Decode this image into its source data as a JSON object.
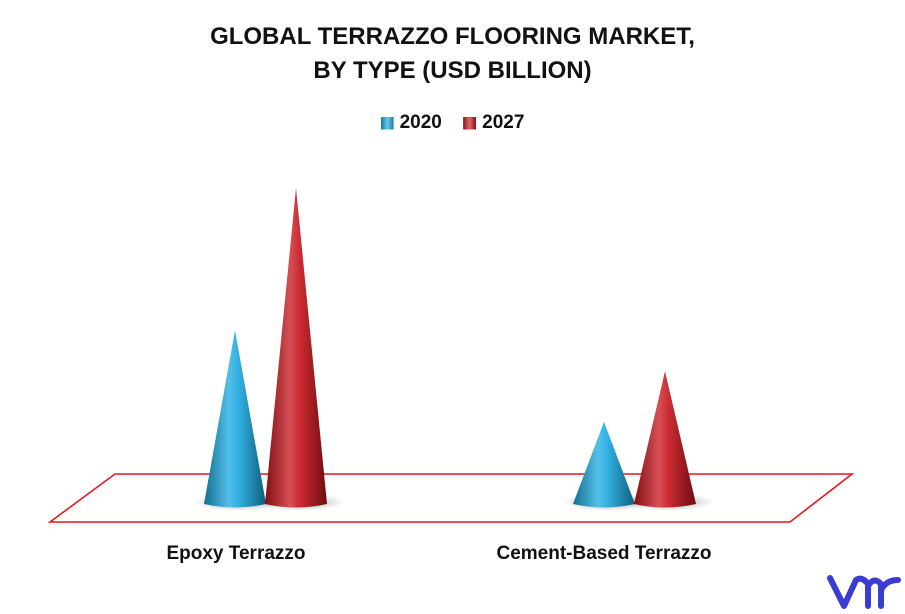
{
  "chart_data": {
    "type": "bar",
    "title_lines": [
      "GLOBAL TERRAZZO FLOORING MARKET,",
      "BY TYPE (USD BILLION)"
    ],
    "categories": [
      "Epoxy Terrazzo",
      "Cement-Based Terrazzo"
    ],
    "series": [
      {
        "name": "2020",
        "values": [
          5.5,
          2.6
        ],
        "color": "#1ba9e0"
      },
      {
        "name": "2027",
        "values": [
          10.0,
          4.2
        ],
        "color": "#c8161d"
      }
    ],
    "ylim": [
      0,
      10
    ],
    "mark_shape": "cone",
    "floor_color": "#e0191e",
    "legend_position": "top-center",
    "grid": false
  },
  "logo": {
    "icon": "vmr-logo-icon",
    "color": "#3b3cd1"
  }
}
